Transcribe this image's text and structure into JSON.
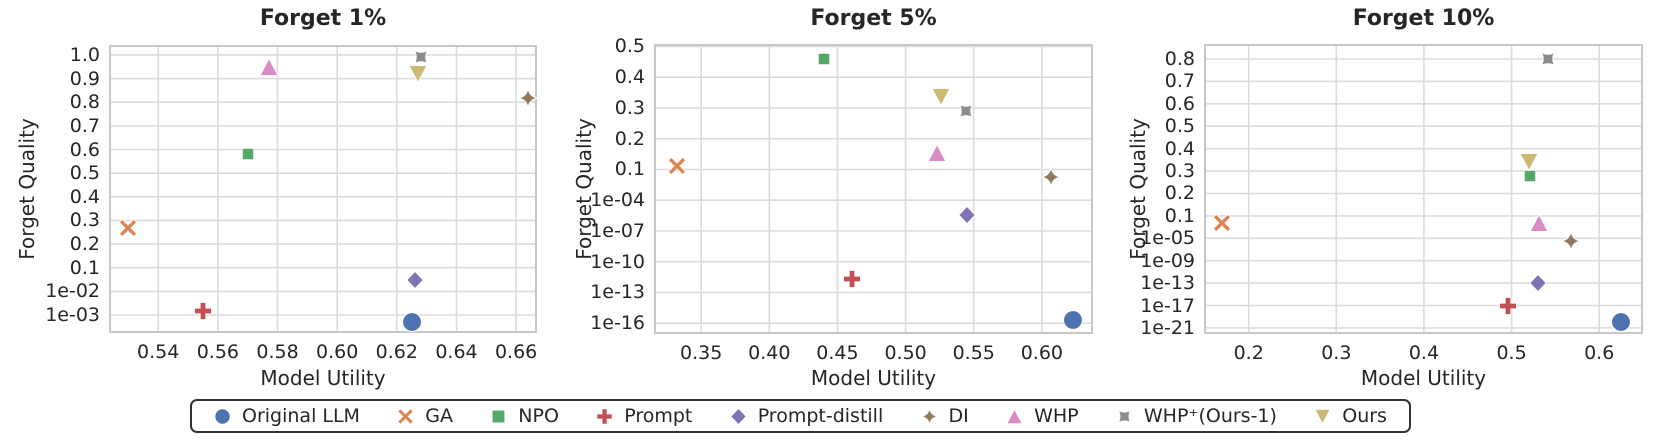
{
  "figure": {
    "description": "Three scatter plots comparing unlearning methods"
  },
  "style": {
    "grid_color": "#DBDBDB",
    "spine_color": "#C7C7C7",
    "text_color": "#262626",
    "background": "#FFFFFF",
    "legend_border": "#333333"
  },
  "legend": {
    "items": [
      {
        "label": "Original LLM",
        "marker": "circle",
        "color": "#4C72B0"
      },
      {
        "label": "GA",
        "marker": "x-bold",
        "color": "#DD8452"
      },
      {
        "label": "NPO",
        "marker": "square",
        "color": "#55A868"
      },
      {
        "label": "Prompt",
        "marker": "plus",
        "color": "#C44E52"
      },
      {
        "label": "Prompt-distill",
        "marker": "diamond",
        "color": "#8172B3"
      },
      {
        "label": "DI",
        "marker": "thin-star",
        "color": "#937860"
      },
      {
        "label": "WHP",
        "marker": "triangle-up",
        "color": "#DA8BC3"
      },
      {
        "label": "WHP⁺(Ours-1)",
        "marker": "star4",
        "color": "#8C8C8C"
      },
      {
        "label": "Ours",
        "marker": "triangle-down",
        "color": "#CCB974"
      }
    ]
  },
  "chart_data": [
    {
      "type": "scatter",
      "title": "Forget 1%",
      "xlabel": "Model Utility",
      "ylabel": "Forget Quality",
      "xlim": [
        0.5235,
        0.667
      ],
      "x_ticks": [
        {
          "v": 0.54,
          "label": "0.54"
        },
        {
          "v": 0.56,
          "label": "0.56"
        },
        {
          "v": 0.58,
          "label": "0.58"
        },
        {
          "v": 0.6,
          "label": "0.60"
        },
        {
          "v": 0.62,
          "label": "0.62"
        },
        {
          "v": 0.64,
          "label": "0.64"
        },
        {
          "v": 0.66,
          "label": "0.66"
        }
      ],
      "y_ticks": [
        {
          "v": 1.0,
          "label": "1.0"
        },
        {
          "v": 0.9,
          "label": "0.9"
        },
        {
          "v": 0.8,
          "label": "0.8"
        },
        {
          "v": 0.7,
          "label": "0.7"
        },
        {
          "v": 0.6,
          "label": "0.6"
        },
        {
          "v": 0.5,
          "label": "0.5"
        },
        {
          "v": 0.4,
          "label": "0.4"
        },
        {
          "v": 0.3,
          "label": "0.3"
        },
        {
          "v": 0.2,
          "label": "0.2"
        },
        {
          "v": 0.1,
          "label": "0.1"
        },
        {
          "v": 0.01,
          "label": "1e-02"
        },
        {
          "v": 0.001,
          "label": "1e-03"
        }
      ],
      "y_pad_top": 0.42,
      "y_pad_bottom": 0.76,
      "y_scale": "linear above 0.1, log below",
      "points": [
        {
          "series": "Original LLM",
          "x": 0.625,
          "y": 0.0005
        },
        {
          "series": "GA",
          "x": 0.53,
          "y": 0.27
        },
        {
          "series": "NPO",
          "x": 0.57,
          "y": 0.58
        },
        {
          "series": "Prompt",
          "x": 0.555,
          "y": 0.0015
        },
        {
          "series": "Prompt-distill",
          "x": 0.626,
          "y": 0.03
        },
        {
          "series": "DI",
          "x": 0.664,
          "y": 0.82
        },
        {
          "series": "WHP",
          "x": 0.577,
          "y": 0.95
        },
        {
          "series": "WHP⁺(Ours-1)",
          "x": 0.628,
          "y": 0.99
        },
        {
          "series": "Ours",
          "x": 0.627,
          "y": 0.92
        }
      ]
    },
    {
      "type": "scatter",
      "title": "Forget 5%",
      "xlabel": "Model Utility",
      "ylabel": "Forget Quality",
      "xlim": [
        0.3154,
        0.6375
      ],
      "x_ticks": [
        {
          "v": 0.35,
          "label": "0.35"
        },
        {
          "v": 0.4,
          "label": "0.40"
        },
        {
          "v": 0.45,
          "label": "0.45"
        },
        {
          "v": 0.5,
          "label": "0.50"
        },
        {
          "v": 0.55,
          "label": "0.55"
        },
        {
          "v": 0.6,
          "label": "0.60"
        }
      ],
      "y_ticks": [
        {
          "v": 0.5,
          "label": "0.5"
        },
        {
          "v": 0.4,
          "label": "0.4"
        },
        {
          "v": 0.3,
          "label": "0.3"
        },
        {
          "v": 0.2,
          "label": "0.2"
        },
        {
          "v": 0.1,
          "label": "0.1"
        },
        {
          "v": 0.0001,
          "label": "1e-04"
        },
        {
          "v": 1e-07,
          "label": "1e-07"
        },
        {
          "v": 1e-10,
          "label": "1e-10"
        },
        {
          "v": 1e-13,
          "label": "1e-13"
        },
        {
          "v": 1e-16,
          "label": "1e-16"
        }
      ],
      "y_pad_top": 0.08,
      "y_pad_bottom": 0.35,
      "y_scale": "linear above 0.1, log below",
      "points": [
        {
          "series": "Original LLM",
          "x": 0.623,
          "y": 2e-16
        },
        {
          "series": "GA",
          "x": 0.332,
          "y": 0.11
        },
        {
          "series": "NPO",
          "x": 0.44,
          "y": 0.46
        },
        {
          "series": "Prompt",
          "x": 0.461,
          "y": 2e-12
        },
        {
          "series": "Prompt-distill",
          "x": 0.545,
          "y": 4e-06
        },
        {
          "series": "DI",
          "x": 0.607,
          "y": 0.02
        },
        {
          "series": "WHP",
          "x": 0.523,
          "y": 0.155
        },
        {
          "series": "WHP⁺(Ours-1)",
          "x": 0.544,
          "y": 0.29
        },
        {
          "series": "Ours",
          "x": 0.526,
          "y": 0.335
        }
      ]
    },
    {
      "type": "scatter",
      "title": "Forget 10%",
      "xlabel": "Model Utility",
      "ylabel": "Forget Quality",
      "xlim": [
        0.149,
        0.65
      ],
      "x_ticks": [
        {
          "v": 0.2,
          "label": "0.2"
        },
        {
          "v": 0.3,
          "label": "0.3"
        },
        {
          "v": 0.4,
          "label": "0.4"
        },
        {
          "v": 0.5,
          "label": "0.5"
        },
        {
          "v": 0.6,
          "label": "0.6"
        }
      ],
      "y_ticks": [
        {
          "v": 0.8,
          "label": "0.8"
        },
        {
          "v": 0.7,
          "label": "0.7"
        },
        {
          "v": 0.6,
          "label": "0.6"
        },
        {
          "v": 0.5,
          "label": "0.5"
        },
        {
          "v": 0.4,
          "label": "0.4"
        },
        {
          "v": 0.3,
          "label": "0.3"
        },
        {
          "v": 0.2,
          "label": "0.2"
        },
        {
          "v": 0.1,
          "label": "0.1"
        },
        {
          "v": 1e-05,
          "label": "1e-05"
        },
        {
          "v": 1e-09,
          "label": "1e-09"
        },
        {
          "v": 1e-13,
          "label": "1e-13"
        },
        {
          "v": 1e-17,
          "label": "1e-17"
        },
        {
          "v": 1e-21,
          "label": "1e-21"
        }
      ],
      "y_pad_top": 0.67,
      "y_pad_bottom": 0.27,
      "y_scale": "linear above 0.1, log below",
      "points": [
        {
          "series": "Original LLM",
          "x": 0.625,
          "y": 1e-20
        },
        {
          "series": "GA",
          "x": 0.17,
          "y": 0.006
        },
        {
          "series": "NPO",
          "x": 0.521,
          "y": 0.28
        },
        {
          "series": "Prompt",
          "x": 0.496,
          "y": 1e-17
        },
        {
          "series": "Prompt-distill",
          "x": 0.53,
          "y": 1e-13
        },
        {
          "series": "DI",
          "x": 0.568,
          "y": 3e-06
        },
        {
          "series": "WHP",
          "x": 0.531,
          "y": 0.005
        },
        {
          "series": "WHP⁺(Ours-1)",
          "x": 0.541,
          "y": 0.8
        },
        {
          "series": "Ours",
          "x": 0.52,
          "y": 0.34
        }
      ]
    }
  ]
}
